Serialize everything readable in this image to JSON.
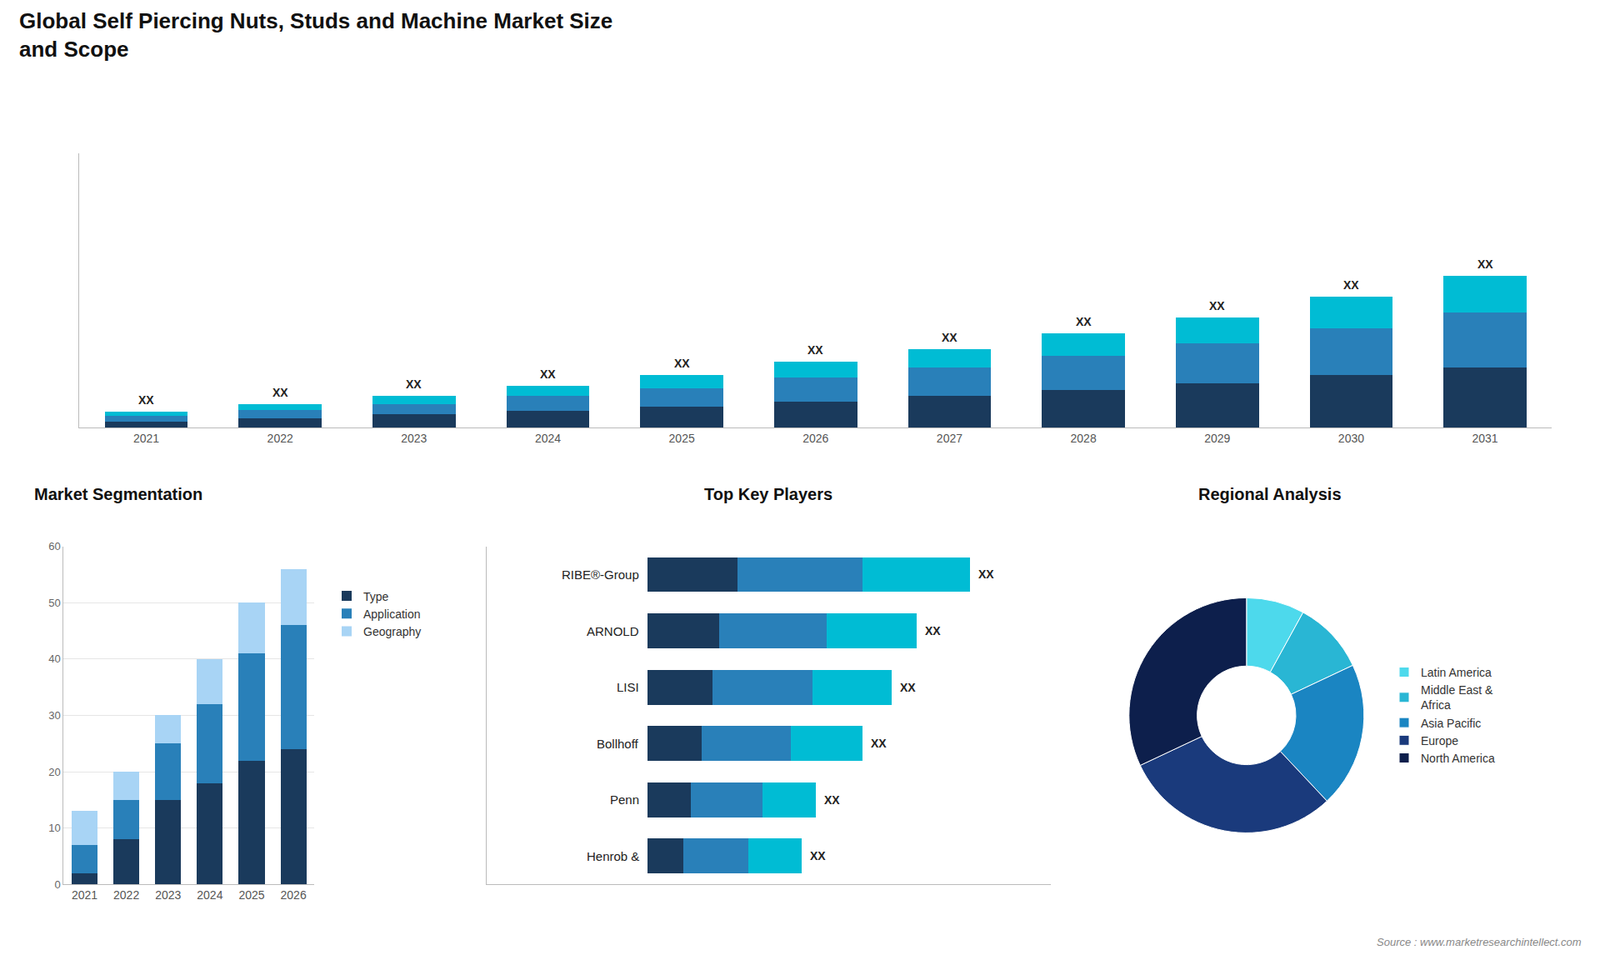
{
  "title": "Global Self Piercing Nuts, Studs and Machine Market Size\nand Scope",
  "annotations": [
    "Source : www.marketresearchintellect.com"
  ],
  "chart_data": [
    {
      "type": "bar",
      "stacked": true,
      "categories": [
        "2021",
        "2022",
        "2023",
        "2024",
        "2025",
        "2026",
        "2027",
        "2028",
        "2029",
        "2030",
        "2031"
      ],
      "series": [
        {
          "color": "#1a3a5c",
          "values": [
            1.2,
            1.8,
            2.5,
            3.2,
            4.0,
            5.0,
            6.0,
            7.2,
            8.5,
            10.0,
            11.5
          ]
        },
        {
          "color": "#2980b9",
          "values": [
            1.0,
            1.5,
            2.0,
            2.8,
            3.5,
            4.5,
            5.5,
            6.5,
            7.5,
            9.0,
            10.5
          ]
        },
        {
          "color": "#00bcd4",
          "values": [
            0.8,
            1.2,
            1.5,
            2.0,
            2.5,
            3.0,
            3.5,
            4.3,
            5.0,
            6.0,
            7.0
          ]
        }
      ],
      "ylim": [
        0,
        52.2
      ],
      "tick_labels": "x",
      "grid": false,
      "annotations": [
        {
          "category": "2021",
          "text": "XX"
        },
        {
          "category": "2022",
          "text": "XX"
        },
        {
          "category": "2023",
          "text": "XX"
        },
        {
          "category": "2024",
          "text": "XX"
        },
        {
          "category": "2025",
          "text": "XX"
        },
        {
          "category": "2026",
          "text": "XX"
        },
        {
          "category": "2027",
          "text": "XX"
        },
        {
          "category": "2028",
          "text": "XX"
        },
        {
          "category": "2029",
          "text": "XX"
        },
        {
          "category": "2030",
          "text": "XX"
        },
        {
          "category": "2031",
          "text": "XX"
        }
      ]
    },
    {
      "type": "bar",
      "stacked": true,
      "title": "Market Segmentation",
      "categories": [
        "2021",
        "2022",
        "2023",
        "2024",
        "2025",
        "2026"
      ],
      "series": [
        {
          "name": "Type",
          "color": "#1a3a5c",
          "values": [
            2,
            8,
            15,
            18,
            22,
            24
          ]
        },
        {
          "name": "Application",
          "color": "#2980b9",
          "values": [
            5,
            7,
            10,
            14,
            19,
            22
          ]
        },
        {
          "name": "Geography",
          "color": "#a8d4f5",
          "values": [
            6,
            5,
            5,
            8,
            9,
            10
          ]
        }
      ],
      "ylim": [
        0,
        60
      ],
      "yticks": [
        0,
        10,
        20,
        30,
        40,
        50,
        60
      ],
      "grid": true,
      "legend": "right"
    },
    {
      "type": "bar",
      "orientation": "horizontal",
      "stacked": true,
      "title": "Top Key Players",
      "categories": [
        "RIBE®-Group",
        "ARNOLD",
        "LISI",
        "Bollhoff",
        "Penn",
        "Henrob &"
      ],
      "series": [
        {
          "color": "#1a3a5c",
          "values": [
            2.5,
            2.0,
            1.8,
            1.5,
            1.2,
            1.0
          ]
        },
        {
          "color": "#2980b9",
          "values": [
            3.5,
            3.0,
            2.8,
            2.5,
            2.0,
            1.8
          ]
        },
        {
          "color": "#00bcd4",
          "values": [
            3.0,
            2.5,
            2.2,
            2.0,
            1.5,
            1.5
          ]
        }
      ],
      "xlim": [
        -4.5,
        11.25
      ],
      "tick_labels": "y",
      "grid": false,
      "annotations": [
        {
          "category": "RIBE®-Group",
          "text": "XX"
        },
        {
          "category": "ARNOLD",
          "text": "XX"
        },
        {
          "category": "LISI",
          "text": "XX"
        },
        {
          "category": "Bollhoff",
          "text": "XX"
        },
        {
          "category": "Penn",
          "text": "XX"
        },
        {
          "category": "Henrob &",
          "text": "XX"
        }
      ]
    },
    {
      "type": "donut",
      "title": "Regional Analysis",
      "categories": [
        "Latin America",
        "Middle East &\nAfrica",
        "Asia Pacific",
        "Europe",
        "North America"
      ],
      "values": [
        8,
        10,
        20,
        30,
        32
      ],
      "colors": [
        "#4dd9ec",
        "#29b6d4",
        "#1a85c2",
        "#1a3a7c",
        "#0d1f4c"
      ],
      "legend": "right"
    }
  ]
}
